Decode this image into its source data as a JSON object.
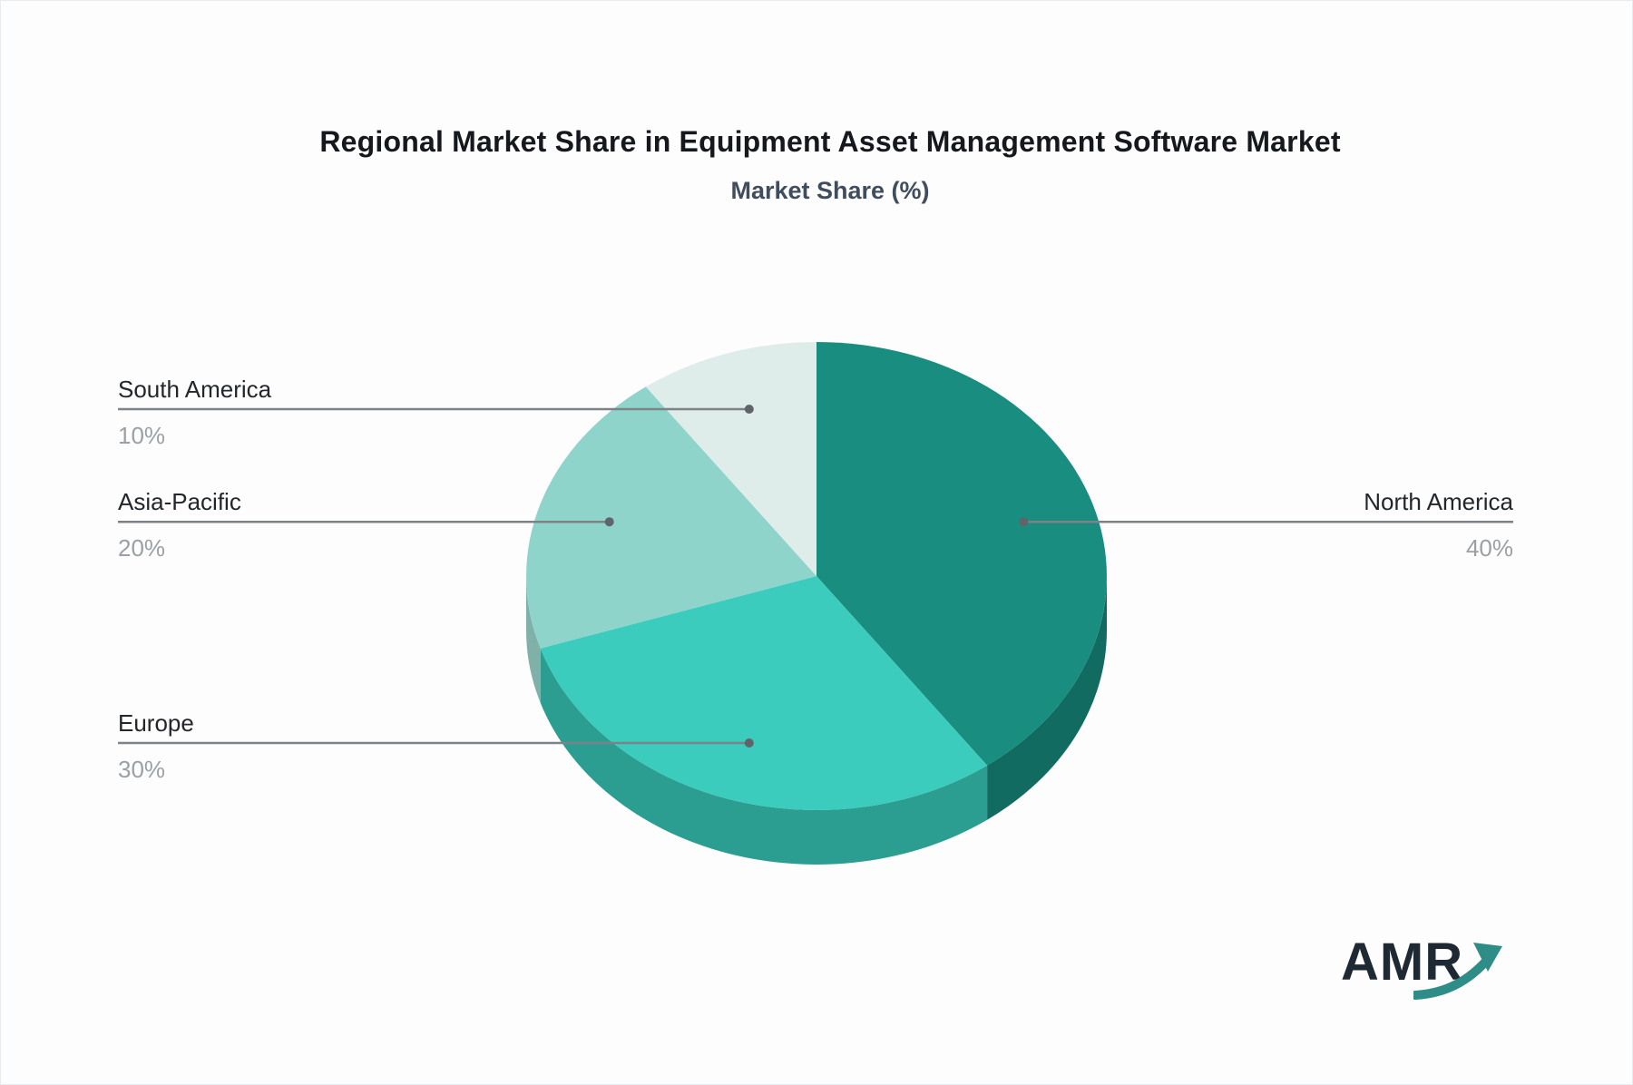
{
  "chart_data": {
    "type": "pie",
    "title": "Regional Market Share in Equipment Asset Management Software Market",
    "subtitle": "Market Share (%)",
    "unit": "%",
    "effect": "3d",
    "legend_position": "none",
    "labels_layout": "leader-lines",
    "start_angle_deg": 0,
    "direction": "clockwise",
    "slices": [
      {
        "label": "North America",
        "value": 40,
        "display_value": "40%",
        "color": "#198d80",
        "side_color": "#126b61",
        "label_side": "right"
      },
      {
        "label": "Europe",
        "value": 30,
        "display_value": "30%",
        "color": "#3bccbd",
        "side_color": "#2b9e91",
        "label_side": "left"
      },
      {
        "label": "Asia-Pacific",
        "value": 20,
        "display_value": "20%",
        "color": "#8ed4cb",
        "side_color": "#7fb1a8",
        "label_side": "left"
      },
      {
        "label": "South America",
        "value": 10,
        "display_value": "10%",
        "color": "#dfedea",
        "side_color": "#c6ded9",
        "label_side": "left"
      }
    ]
  },
  "logo": {
    "text": "AMR",
    "text_color": "#1e2933",
    "arrow_color": "#2e8d87"
  },
  "colors": {
    "background": "#fdfdfd",
    "title": "#15181c",
    "subtitle": "#414c5c",
    "label_text": "#23272b",
    "value_text": "#9aa0a5",
    "leader_line": "#7d8285",
    "leader_dot": "#5f6468"
  }
}
